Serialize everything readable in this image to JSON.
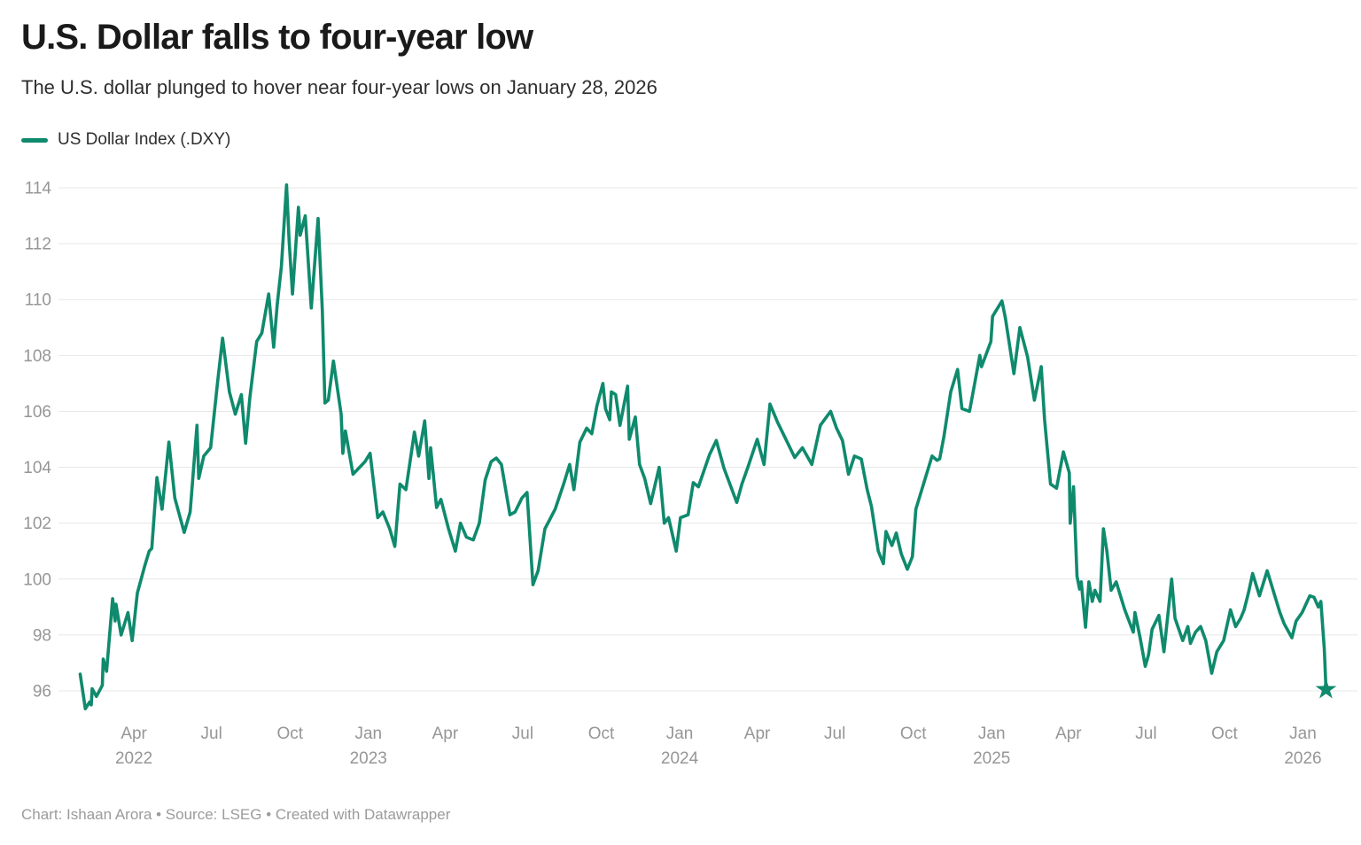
{
  "header": {
    "title": "U.S. Dollar falls to four-year low",
    "subtitle": "The U.S. dollar plunged to hover near four-year lows on January 28, 2026"
  },
  "legend": {
    "label": "US Dollar Index (.DXY)",
    "color": "#0F8A6D"
  },
  "footer": {
    "text": "Chart: Ishaan Arora • Source: LSEG • Created with Datawrapper"
  },
  "colors": {
    "line": "#0F8A6D",
    "grid": "#e7e7e7",
    "tick_label": "#969696",
    "title": "#1a1a1a",
    "subtitle": "#2e2e2e",
    "footer": "#9b9b9b",
    "background": "#ffffff"
  },
  "chart_data": {
    "type": "line",
    "title": "U.S. Dollar falls to four-year low",
    "subtitle": "The U.S. dollar plunged to hover near four-year lows on January 28, 2026",
    "legend_position": "top-left",
    "grid": true,
    "y_axis": {
      "min": 96,
      "max": 114,
      "step": 2,
      "ticks": [
        96,
        98,
        100,
        102,
        104,
        106,
        108,
        110,
        112,
        114
      ]
    },
    "x_axis": {
      "range_start": "2022-01-28",
      "range_end": "2026-01-28",
      "ticks": [
        {
          "date": "2022-04-01",
          "label": "Apr",
          "year": "2022"
        },
        {
          "date": "2022-07-01",
          "label": "Jul"
        },
        {
          "date": "2022-10-01",
          "label": "Oct"
        },
        {
          "date": "2023-01-01",
          "label": "Jan",
          "year": "2023"
        },
        {
          "date": "2023-04-01",
          "label": "Apr"
        },
        {
          "date": "2023-07-01",
          "label": "Jul"
        },
        {
          "date": "2023-10-01",
          "label": "Oct"
        },
        {
          "date": "2024-01-01",
          "label": "Jan",
          "year": "2024"
        },
        {
          "date": "2024-04-01",
          "label": "Apr"
        },
        {
          "date": "2024-07-01",
          "label": "Jul"
        },
        {
          "date": "2024-10-01",
          "label": "Oct"
        },
        {
          "date": "2025-01-01",
          "label": "Jan",
          "year": "2025"
        },
        {
          "date": "2025-04-01",
          "label": "Apr"
        },
        {
          "date": "2025-07-01",
          "label": "Jul"
        },
        {
          "date": "2025-10-01",
          "label": "Oct"
        },
        {
          "date": "2026-01-01",
          "label": "Jan",
          "year": "2026"
        }
      ]
    },
    "annotations": {
      "end_marker": {
        "shape": "star",
        "date": "2026-01-28",
        "value": 96.05,
        "color": "#0F8A6D"
      }
    },
    "series": [
      {
        "name": "US Dollar Index (.DXY)",
        "color": "#0F8A6D",
        "points": [
          [
            "2022-01-28",
            96.6
          ],
          [
            "2022-02-03",
            95.36
          ],
          [
            "2022-02-08",
            95.6
          ],
          [
            "2022-02-10",
            95.5
          ],
          [
            "2022-02-11",
            96.08
          ],
          [
            "2022-02-16",
            95.8
          ],
          [
            "2022-02-23",
            96.2
          ],
          [
            "2022-02-24",
            97.14
          ],
          [
            "2022-02-28",
            96.7
          ],
          [
            "2022-03-07",
            99.3
          ],
          [
            "2022-03-10",
            98.5
          ],
          [
            "2022-03-11",
            99.1
          ],
          [
            "2022-03-17",
            98.0
          ],
          [
            "2022-03-25",
            98.8
          ],
          [
            "2022-03-30",
            97.8
          ],
          [
            "2022-04-05",
            99.5
          ],
          [
            "2022-04-14",
            100.5
          ],
          [
            "2022-04-19",
            101.0
          ],
          [
            "2022-04-22",
            101.1
          ],
          [
            "2022-04-28",
            103.63
          ],
          [
            "2022-05-04",
            102.5
          ],
          [
            "2022-05-12",
            104.9
          ],
          [
            "2022-05-19",
            102.9
          ],
          [
            "2022-05-30",
            101.67
          ],
          [
            "2022-06-06",
            102.4
          ],
          [
            "2022-06-14",
            105.5
          ],
          [
            "2022-06-16",
            103.6
          ],
          [
            "2022-06-22",
            104.4
          ],
          [
            "2022-06-30",
            104.7
          ],
          [
            "2022-07-08",
            107.0
          ],
          [
            "2022-07-14",
            108.62
          ],
          [
            "2022-07-22",
            106.7
          ],
          [
            "2022-07-29",
            105.9
          ],
          [
            "2022-08-05",
            106.6
          ],
          [
            "2022-08-10",
            104.86
          ],
          [
            "2022-08-15",
            106.5
          ],
          [
            "2022-08-23",
            108.5
          ],
          [
            "2022-08-29",
            108.8
          ],
          [
            "2022-09-06",
            110.2
          ],
          [
            "2022-09-12",
            108.3
          ],
          [
            "2022-09-16",
            109.8
          ],
          [
            "2022-09-21",
            111.2
          ],
          [
            "2022-09-27",
            114.1
          ],
          [
            "2022-09-30",
            112.1
          ],
          [
            "2022-10-04",
            110.2
          ],
          [
            "2022-10-11",
            113.3
          ],
          [
            "2022-10-13",
            112.3
          ],
          [
            "2022-10-19",
            113.0
          ],
          [
            "2022-10-26",
            109.7
          ],
          [
            "2022-11-03",
            112.9
          ],
          [
            "2022-11-08",
            109.6
          ],
          [
            "2022-11-11",
            106.3
          ],
          [
            "2022-11-15",
            106.4
          ],
          [
            "2022-11-21",
            107.8
          ],
          [
            "2022-11-30",
            105.9
          ],
          [
            "2022-12-02",
            104.5
          ],
          [
            "2022-12-05",
            105.3
          ],
          [
            "2022-12-14",
            103.75
          ],
          [
            "2022-12-28",
            104.2
          ],
          [
            "2023-01-03",
            104.5
          ],
          [
            "2023-01-12",
            102.2
          ],
          [
            "2023-01-18",
            102.4
          ],
          [
            "2023-01-26",
            101.8
          ],
          [
            "2023-02-01",
            101.17
          ],
          [
            "2023-02-07",
            103.4
          ],
          [
            "2023-02-14",
            103.2
          ],
          [
            "2023-02-24",
            105.26
          ],
          [
            "2023-03-01",
            104.4
          ],
          [
            "2023-03-08",
            105.66
          ],
          [
            "2023-03-13",
            103.6
          ],
          [
            "2023-03-15",
            104.7
          ],
          [
            "2023-03-22",
            102.56
          ],
          [
            "2023-03-27",
            102.85
          ],
          [
            "2023-04-05",
            101.8
          ],
          [
            "2023-04-13",
            101.0
          ],
          [
            "2023-04-19",
            102.0
          ],
          [
            "2023-04-26",
            101.5
          ],
          [
            "2023-05-04",
            101.4
          ],
          [
            "2023-05-11",
            102.0
          ],
          [
            "2023-05-18",
            103.55
          ],
          [
            "2023-05-25",
            104.2
          ],
          [
            "2023-05-31",
            104.33
          ],
          [
            "2023-06-06",
            104.1
          ],
          [
            "2023-06-16",
            102.3
          ],
          [
            "2023-06-22",
            102.4
          ],
          [
            "2023-06-30",
            102.9
          ],
          [
            "2023-07-06",
            103.1
          ],
          [
            "2023-07-13",
            99.8
          ],
          [
            "2023-07-19",
            100.3
          ],
          [
            "2023-07-27",
            101.8
          ],
          [
            "2023-08-08",
            102.5
          ],
          [
            "2023-08-18",
            103.4
          ],
          [
            "2023-08-25",
            104.1
          ],
          [
            "2023-08-30",
            103.2
          ],
          [
            "2023-09-06",
            104.9
          ],
          [
            "2023-09-14",
            105.4
          ],
          [
            "2023-09-20",
            105.2
          ],
          [
            "2023-09-26",
            106.2
          ],
          [
            "2023-10-03",
            107.0
          ],
          [
            "2023-10-06",
            106.1
          ],
          [
            "2023-10-11",
            105.7
          ],
          [
            "2023-10-13",
            106.7
          ],
          [
            "2023-10-18",
            106.6
          ],
          [
            "2023-10-23",
            105.5
          ],
          [
            "2023-11-01",
            106.9
          ],
          [
            "2023-11-03",
            105.0
          ],
          [
            "2023-11-10",
            105.8
          ],
          [
            "2023-11-15",
            104.1
          ],
          [
            "2023-11-21",
            103.6
          ],
          [
            "2023-11-28",
            102.7
          ],
          [
            "2023-12-08",
            104.0
          ],
          [
            "2023-12-14",
            102.0
          ],
          [
            "2023-12-19",
            102.2
          ],
          [
            "2023-12-28",
            101.0
          ],
          [
            "2024-01-02",
            102.2
          ],
          [
            "2024-01-11",
            102.3
          ],
          [
            "2024-01-17",
            103.45
          ],
          [
            "2024-01-23",
            103.3
          ],
          [
            "2024-02-05",
            104.45
          ],
          [
            "2024-02-13",
            104.96
          ],
          [
            "2024-02-22",
            103.96
          ],
          [
            "2024-03-08",
            102.74
          ],
          [
            "2024-03-14",
            103.4
          ],
          [
            "2024-03-21",
            104.0
          ],
          [
            "2024-04-01",
            105.0
          ],
          [
            "2024-04-09",
            104.1
          ],
          [
            "2024-04-16",
            106.26
          ],
          [
            "2024-04-25",
            105.6
          ],
          [
            "2024-05-03",
            105.1
          ],
          [
            "2024-05-15",
            104.35
          ],
          [
            "2024-05-24",
            104.7
          ],
          [
            "2024-06-04",
            104.1
          ],
          [
            "2024-06-14",
            105.5
          ],
          [
            "2024-06-26",
            106.0
          ],
          [
            "2024-07-03",
            105.4
          ],
          [
            "2024-07-10",
            104.96
          ],
          [
            "2024-07-17",
            103.75
          ],
          [
            "2024-07-24",
            104.4
          ],
          [
            "2024-08-01",
            104.3
          ],
          [
            "2024-08-08",
            103.2
          ],
          [
            "2024-08-13",
            102.6
          ],
          [
            "2024-08-21",
            101.0
          ],
          [
            "2024-08-27",
            100.55
          ],
          [
            "2024-08-30",
            101.7
          ],
          [
            "2024-09-06",
            101.2
          ],
          [
            "2024-09-11",
            101.65
          ],
          [
            "2024-09-17",
            100.9
          ],
          [
            "2024-09-24",
            100.35
          ],
          [
            "2024-09-30",
            100.8
          ],
          [
            "2024-10-04",
            102.5
          ],
          [
            "2024-10-17",
            103.8
          ],
          [
            "2024-10-23",
            104.4
          ],
          [
            "2024-10-29",
            104.25
          ],
          [
            "2024-11-01",
            104.3
          ],
          [
            "2024-11-06",
            105.1
          ],
          [
            "2024-11-14",
            106.7
          ],
          [
            "2024-11-22",
            107.5
          ],
          [
            "2024-11-27",
            106.1
          ],
          [
            "2024-12-06",
            106.0
          ],
          [
            "2024-12-18",
            108.0
          ],
          [
            "2024-12-20",
            107.6
          ],
          [
            "2024-12-31",
            108.5
          ],
          [
            "2025-01-02",
            109.4
          ],
          [
            "2025-01-13",
            109.95
          ],
          [
            "2025-01-17",
            109.35
          ],
          [
            "2025-01-27",
            107.35
          ],
          [
            "2025-02-03",
            109.0
          ],
          [
            "2025-02-12",
            107.95
          ],
          [
            "2025-02-20",
            106.4
          ],
          [
            "2025-02-28",
            107.6
          ],
          [
            "2025-03-04",
            105.7
          ],
          [
            "2025-03-11",
            103.4
          ],
          [
            "2025-03-18",
            103.25
          ],
          [
            "2025-03-26",
            104.55
          ],
          [
            "2025-04-02",
            103.8
          ],
          [
            "2025-04-03",
            102.0
          ],
          [
            "2025-04-07",
            103.3
          ],
          [
            "2025-04-11",
            100.1
          ],
          [
            "2025-04-14",
            99.64
          ],
          [
            "2025-04-16",
            99.9
          ],
          [
            "2025-04-21",
            98.28
          ],
          [
            "2025-04-25",
            99.9
          ],
          [
            "2025-04-29",
            99.2
          ],
          [
            "2025-05-02",
            99.6
          ],
          [
            "2025-05-08",
            99.2
          ],
          [
            "2025-05-12",
            101.8
          ],
          [
            "2025-05-16",
            101.0
          ],
          [
            "2025-05-21",
            99.6
          ],
          [
            "2025-05-27",
            99.9
          ],
          [
            "2025-06-02",
            99.3
          ],
          [
            "2025-06-06",
            98.9
          ],
          [
            "2025-06-11",
            98.5
          ],
          [
            "2025-06-16",
            98.1
          ],
          [
            "2025-06-18",
            98.8
          ],
          [
            "2025-06-24",
            97.9
          ],
          [
            "2025-06-30",
            96.88
          ],
          [
            "2025-07-04",
            97.3
          ],
          [
            "2025-07-08",
            98.2
          ],
          [
            "2025-07-16",
            98.7
          ],
          [
            "2025-07-22",
            97.4
          ],
          [
            "2025-07-31",
            100.0
          ],
          [
            "2025-08-04",
            98.6
          ],
          [
            "2025-08-13",
            97.8
          ],
          [
            "2025-08-19",
            98.3
          ],
          [
            "2025-08-22",
            97.7
          ],
          [
            "2025-08-28",
            98.1
          ],
          [
            "2025-09-03",
            98.3
          ],
          [
            "2025-09-09",
            97.8
          ],
          [
            "2025-09-16",
            96.63
          ],
          [
            "2025-09-22",
            97.4
          ],
          [
            "2025-09-30",
            97.8
          ],
          [
            "2025-10-08",
            98.9
          ],
          [
            "2025-10-14",
            98.3
          ],
          [
            "2025-10-20",
            98.6
          ],
          [
            "2025-10-24",
            98.9
          ],
          [
            "2025-10-29",
            99.5
          ],
          [
            "2025-11-03",
            100.2
          ],
          [
            "2025-11-11",
            99.4
          ],
          [
            "2025-11-20",
            100.3
          ],
          [
            "2025-11-28",
            99.5
          ],
          [
            "2025-12-05",
            98.8
          ],
          [
            "2025-12-10",
            98.4
          ],
          [
            "2025-12-19",
            97.9
          ],
          [
            "2025-12-24",
            98.5
          ],
          [
            "2025-12-31",
            98.8
          ],
          [
            "2026-01-09",
            99.4
          ],
          [
            "2026-01-14",
            99.35
          ],
          [
            "2026-01-19",
            99.0
          ],
          [
            "2026-01-22",
            99.2
          ],
          [
            "2026-01-26",
            97.5
          ],
          [
            "2026-01-28",
            96.05
          ]
        ]
      }
    ]
  }
}
